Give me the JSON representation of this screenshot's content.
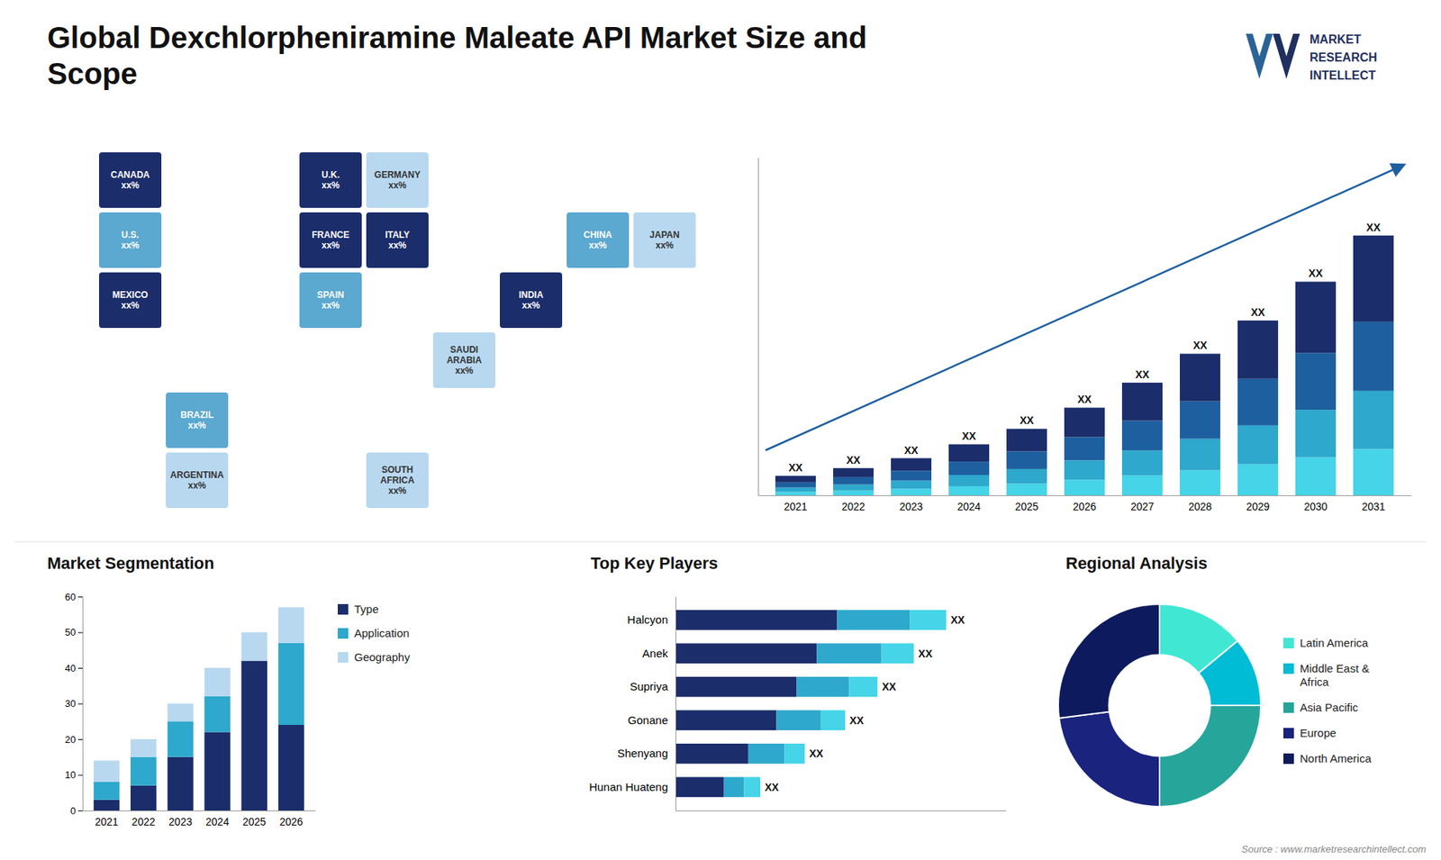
{
  "chart_data": [
    {
      "type": "bar",
      "title": "Global Dexchlorpheniramine Maleate API Market Size and\nScope",
      "stacked": true,
      "categories": [
        "2021",
        "2022",
        "2023",
        "2024",
        "2025",
        "2026",
        "2027",
        "2028",
        "2029",
        "2030",
        "2031"
      ],
      "series": [
        {
          "color": "#45d4e8",
          "values": [
            0.8,
            1.1,
            1.5,
            2.1,
            2.7,
            3.6,
            4.6,
            5.8,
            7.2,
            8.8,
            10.7
          ]
        },
        {
          "color": "#2ea8cc",
          "values": [
            1.0,
            1.4,
            1.9,
            2.6,
            3.4,
            4.5,
            5.8,
            7.3,
            9.0,
            11.0,
            13.5
          ]
        },
        {
          "color": "#1e5fa0",
          "values": [
            1.2,
            1.7,
            2.3,
            3.1,
            4.1,
            5.4,
            6.9,
            8.7,
            10.8,
            13.2,
            16.0
          ]
        },
        {
          "color": "#1b2d6b",
          "values": [
            1.5,
            2.1,
            2.9,
            4.0,
            5.2,
            6.8,
            8.8,
            11.0,
            13.5,
            16.5,
            20.0
          ],
          "value_labels": [
            "XX",
            "XX",
            "XX",
            "XX",
            "XX",
            "XX",
            "XX",
            "XX",
            "XX",
            "XX",
            "XX"
          ]
        }
      ],
      "ylim": [
        0,
        78.26
      ],
      "tick_labels": "x",
      "data_labels": true,
      "grid": false,
      "annotations": [
        "MARKET",
        "RESEARCH",
        "INTELLECT",
        "Source : www.marketresearchintellect.com"
      ]
    },
    {
      "type": "map",
      "categories": [
        "CANADA\nxx%",
        "U.S.\nxx%",
        "MEXICO\nxx%",
        "BRAZIL\nxx%",
        "ARGENTINA\nxx%",
        "U.K.\nxx%",
        "FRANCE\nxx%",
        "SPAIN\nxx%",
        "GERMANY\nxx%",
        "ITALY\nxx%",
        "SAUDI\nARABIA\nxx%",
        "SOUTH\nAFRICA\nxx%",
        "CHINA\nxx%",
        "INDIA\nxx%",
        "JAPAN\nxx%"
      ],
      "colors": [
        "#1b2d6b",
        "#5ba8d0",
        "#1b2d6b",
        "#5ba8d0",
        "#b8d8f0",
        "#1b2d6b",
        "#1b2d6b",
        "#5ba8d0",
        "#b8d8f0",
        "#1b2d6b",
        "#b8d8f0",
        "#b8d8f0",
        "#5ba8d0",
        "#1b2d6b",
        "#b8d8f0"
      ]
    },
    {
      "type": "bar",
      "title": "Market Segmentation",
      "stacked": true,
      "categories": [
        "2021",
        "2022",
        "2023",
        "2024",
        "2025",
        "2026"
      ],
      "series": [
        {
          "name": "Type",
          "color": "#1b2d6b",
          "values": [
            3,
            7,
            15,
            22,
            42,
            24
          ]
        },
        {
          "name": "Application",
          "color": "#2ea8cc",
          "values": [
            5,
            8,
            10,
            10,
            0,
            23
          ]
        },
        {
          "name": "Geography",
          "color": "#b8d8f0",
          "values": [
            6,
            5,
            5,
            8,
            8,
            10
          ]
        }
      ],
      "ylim": [
        0,
        60
      ],
      "yticks": [
        0,
        10,
        20,
        30,
        40,
        50,
        60
      ],
      "legend": "right",
      "grid": false
    },
    {
      "type": "bar",
      "title": "Top Key Players",
      "orientation": "horizontal",
      "stacked": true,
      "categories": [
        "Halcyon",
        "Anek",
        "Supriya",
        "Gonane",
        "Shenyang",
        "Hunan Huateng"
      ],
      "series": [
        {
          "color": "#1b2d6b",
          "values": [
            40,
            35,
            30,
            25,
            18,
            12
          ]
        },
        {
          "color": "#2ea8cc",
          "values": [
            18,
            16,
            13,
            11,
            9,
            5
          ]
        },
        {
          "color": "#45d4e8",
          "values": [
            9,
            8,
            7,
            6,
            5,
            4
          ],
          "value_labels": [
            "XX",
            "XX",
            "XX",
            "XX",
            "XX",
            "XX"
          ]
        }
      ],
      "xlim": [
        0,
        81.74
      ],
      "tick_labels": "y",
      "data_labels": true,
      "grid": false
    },
    {
      "type": "donut",
      "title": "Regional Analysis",
      "categories": [
        "Latin America",
        "Middle East &\nAfrica",
        "Asia Pacific",
        "Europe",
        "North America"
      ],
      "values": [
        14,
        11,
        25,
        23,
        27
      ],
      "colors": [
        "#40e8d4",
        "#00bcd4",
        "#26a69a",
        "#1a237e",
        "#0d1b5e"
      ],
      "legend": "right"
    }
  ]
}
